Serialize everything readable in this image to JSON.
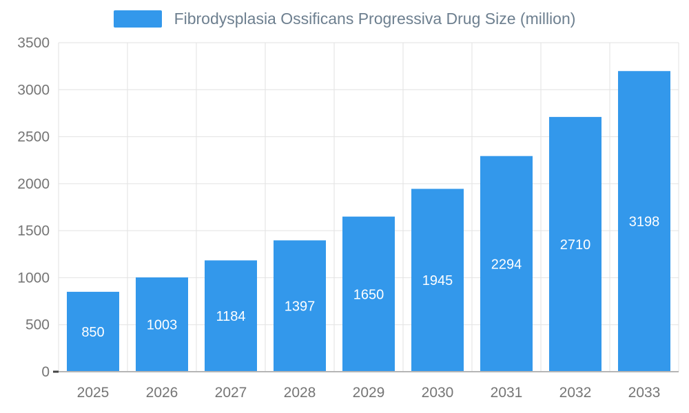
{
  "chart_data": {
    "type": "bar",
    "title": "Fibrodysplasia Ossificans Progressiva Drug Size (million)",
    "categories": [
      "2025",
      "2026",
      "2027",
      "2028",
      "2029",
      "2030",
      "2031",
      "2032",
      "2033"
    ],
    "values": [
      850,
      1003,
      1184,
      1397,
      1650,
      1945,
      2294,
      2710,
      3198
    ],
    "series_name": "Fibrodysplasia Ossificans Progressiva Drug Size (million)",
    "xlabel": "",
    "ylabel": "",
    "ylim": [
      0,
      3500
    ],
    "ytick_step": 500,
    "yticks": [
      0,
      500,
      1000,
      1500,
      2000,
      2500,
      3000,
      3500
    ],
    "grid": true,
    "legend_position": "top",
    "value_labels": "inside-center",
    "colors": {
      "bar": "#3398eb",
      "grid": "#e2e2e2",
      "axis": "#b5b5b5",
      "tick_text": "#757575",
      "value_text": "#ffffff",
      "title_text": "#6d7f8f"
    }
  }
}
